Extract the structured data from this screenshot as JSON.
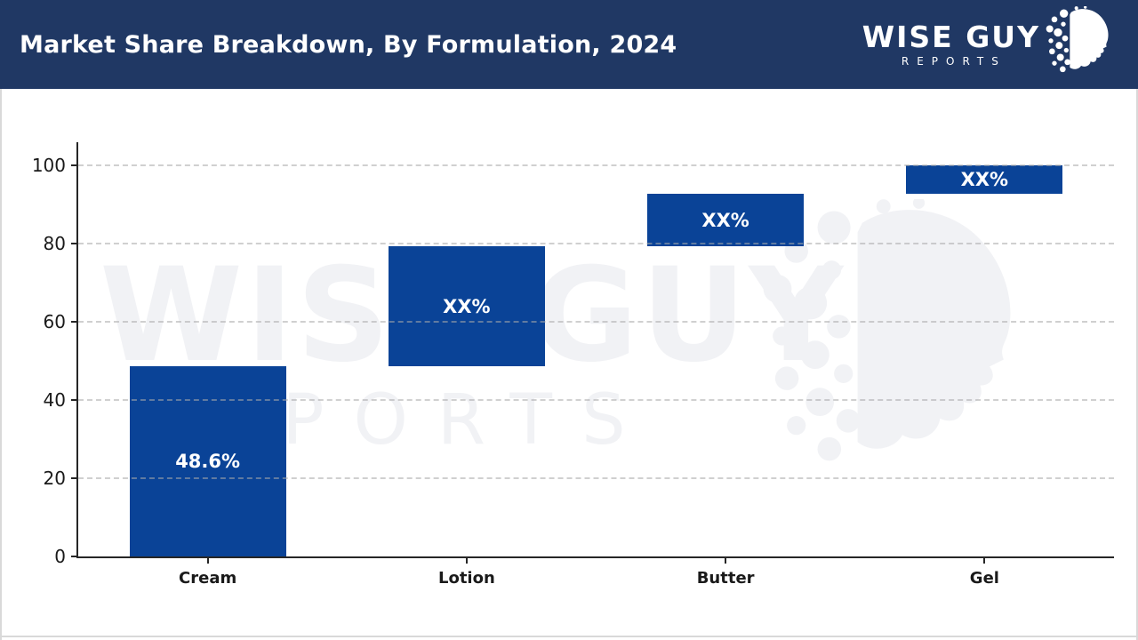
{
  "header": {
    "title": "Market Share Breakdown, By Formulation, 2024"
  },
  "brand": {
    "name": "WISE GUY",
    "sub": "REPORTS"
  },
  "colors": {
    "header_bg": "#203864",
    "bar": "#0a4397",
    "bar_label": "#ffffff",
    "grid": "rgba(170,170,170,0.55)",
    "axis": "#262626",
    "tick_label": "#1a1a1a",
    "watermark": "#f1f2f5"
  },
  "chart_data": {
    "type": "bar",
    "variant": "waterfall",
    "title": "Market Share Breakdown, By Formulation, 2024",
    "categories": [
      "Cream",
      "Lotion",
      "Butter",
      "Gel"
    ],
    "bars": [
      {
        "category": "Cream",
        "start": 0,
        "end": 48.6,
        "label": "48.6%"
      },
      {
        "category": "Lotion",
        "start": 48.6,
        "end": 79.3,
        "label": "XX%"
      },
      {
        "category": "Butter",
        "start": 79.3,
        "end": 92.7,
        "label": "XX%"
      },
      {
        "category": "Gel",
        "start": 92.7,
        "end": 100,
        "label": "XX%"
      }
    ],
    "units": "%",
    "xlabel": "",
    "ylabel": "",
    "yticks": [
      0,
      20,
      40,
      60,
      80,
      100
    ],
    "ylim": [
      0,
      106
    ],
    "grid": "horizontal-dashed",
    "legend": "none"
  }
}
